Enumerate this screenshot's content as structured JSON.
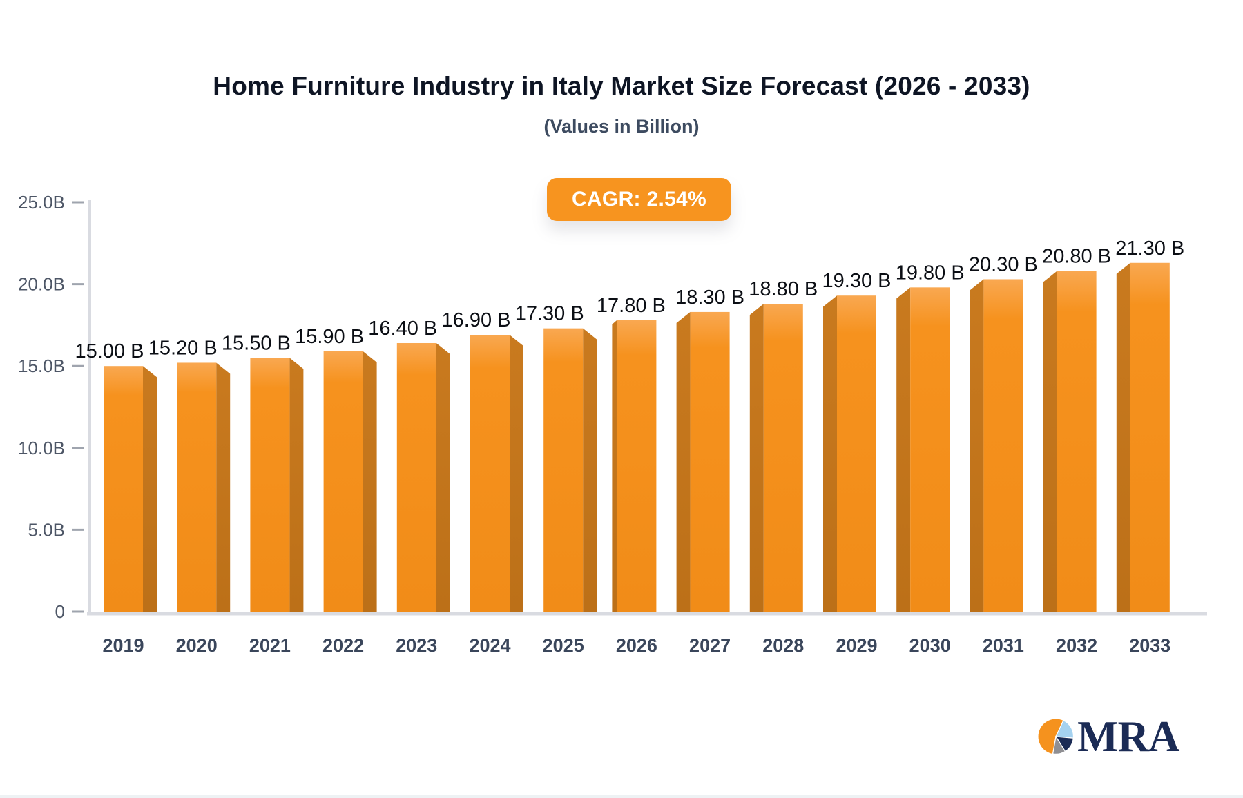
{
  "title": "Home Furniture Industry in Italy Market Size Forecast (2026 - 2033)",
  "subtitle": "(Values in Billion)",
  "cagr": {
    "label": "CAGR: 2.54%"
  },
  "logo": {
    "text": "MRA"
  },
  "colors": {
    "accent_orange": "#f7941f",
    "bar_front_top": "#f9a851",
    "bar_front_mid": "#f6921e",
    "bar_front_bottom": "#f18c18",
    "bar_side": "#bc7018",
    "axis_line": "#d9dbe1",
    "tick_dash": "#9fa4ae",
    "ytick_text": "#4d5666",
    "year_text": "#3a465b",
    "value_text": "#0b0e14",
    "title_text": "#0e1524",
    "subtitle_text": "#3d4b60",
    "logo_navy": "#1b2b55",
    "logo_lightblue": "#a5d2f0",
    "logo_gray": "#8f8f93",
    "logo_orange": "#f5921e"
  },
  "chart_data": {
    "type": "bar",
    "title": "Home Furniture Industry in Italy Market Size Forecast (2026 - 2033)",
    "subtitle": "(Values in Billion)",
    "annotation": "CAGR: 2.54%",
    "xlabel": "",
    "ylabel": "",
    "categories": [
      "2019",
      "2020",
      "2021",
      "2022",
      "2023",
      "2024",
      "2025",
      "2026",
      "2027",
      "2028",
      "2029",
      "2030",
      "2031",
      "2032",
      "2033"
    ],
    "values": [
      15.0,
      15.2,
      15.5,
      15.9,
      16.4,
      16.9,
      17.3,
      17.8,
      18.3,
      18.8,
      19.3,
      19.8,
      20.3,
      20.8,
      21.3
    ],
    "value_labels": [
      "15.00 B",
      "15.20 B",
      "15.50 B",
      "15.90 B",
      "16.40 B",
      "16.90 B",
      "17.30 B",
      "17.80 B",
      "18.30 B",
      "18.80 B",
      "19.30 B",
      "19.80 B",
      "20.30 B",
      "20.80 B",
      "21.30 B"
    ],
    "ylim": [
      0,
      25
    ],
    "yticks": [
      0,
      5,
      10,
      15,
      20,
      25
    ],
    "ytick_labels": [
      "0",
      "5.0B",
      "10.0B",
      "15.0B",
      "20.0B",
      "25.0B"
    ],
    "grid": false,
    "legend": null,
    "style": "3d-bars, orange, value labels above bars"
  }
}
